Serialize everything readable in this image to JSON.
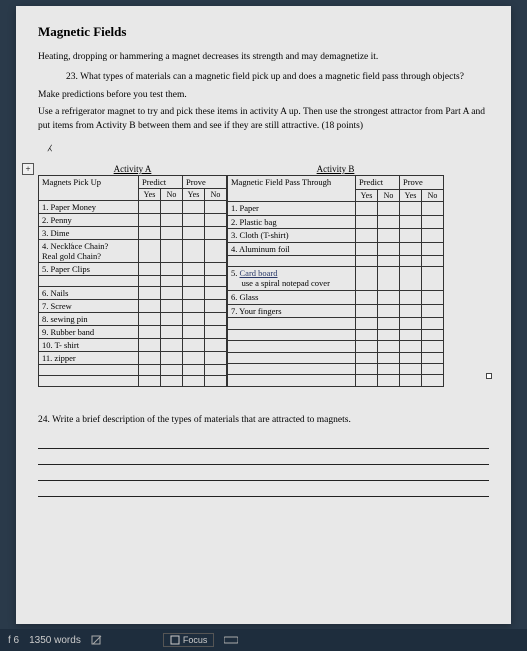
{
  "title": "Magnetic Fields",
  "intro": "Heating, dropping or hammering a magnet decreases its strength and may demagnetize it.",
  "q23_num": "23.",
  "q23": "What types of materials can a magnetic field pick up and does a magnetic field pass through objects?",
  "predict_instr": "Make predictions before you test them.",
  "use_instr": "Use a refrigerator magnet to try and pick these items in activity A up.  Then use the strongest attractor from Part A and put items from Activity B between them and see if they are still attractive.  (18 points)",
  "activityA": {
    "title": "Activity A",
    "header": "Magnets Pick Up",
    "predict": "Predict",
    "prove": "Prove",
    "yes": "Yes",
    "no": "No",
    "items": [
      "1.  Paper Money",
      "2.  Penny",
      "3.  Dime",
      "4.  Necklace Chain?  Real gold Chain?",
      "5.  Paper Clips",
      "6.  Nails",
      "7.  Screw",
      "8.  sewing pin",
      "9.  Rubber band",
      "10.  T- shirt",
      "11.  zipper"
    ]
  },
  "activityB": {
    "title": "Activity B",
    "header": "Magnetic Field Pass Through",
    "predict": "Predict",
    "prove": "Prove",
    "yes": "Yes",
    "no": "No",
    "items": [
      "1.  Paper",
      "2.  Plastic bag",
      "3.  Cloth (T-shirt)",
      "4.  Aluminum foil",
      "5.  Card board\n     use a spiral notepad cover",
      "6.  Glass",
      "7.  Your fingers"
    ],
    "link_text": "Card board"
  },
  "q24": "24. Write a brief description of the types of materials that are attracted to magnets.",
  "status": {
    "page": "f 6",
    "words": "1350 words",
    "focus": "Focus"
  }
}
